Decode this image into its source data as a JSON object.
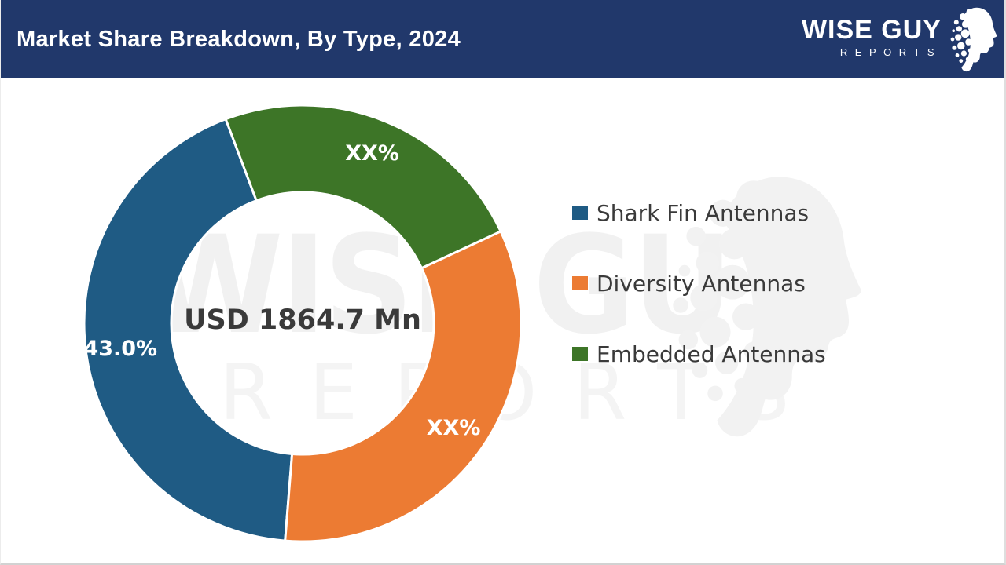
{
  "header": {
    "title": "Market Share Breakdown, By Type, 2024",
    "logo": {
      "line1": "WISE GUY",
      "line2": "REPORTS",
      "icon": "face-profile-dots-icon"
    }
  },
  "watermark": {
    "line1": "WISE GUY",
    "line2": "REPORTS",
    "icon": "face-profile-dots-icon"
  },
  "colors": {
    "header_bg": "#21386B",
    "title_text": "#FFFFFF",
    "center_text": "#3A3A3A",
    "legend_text": "#3A3A3A",
    "slice_label_text": "#FFFFFF",
    "watermark": "#F1F1F1"
  },
  "chart_data": {
    "type": "pie",
    "subtype": "donut",
    "title": "Market Share Breakdown, By Type, 2024",
    "center_label": "USD 1864.7 Mn",
    "series": [
      {
        "name": "Shark Fin Antennas",
        "label": "43.0%",
        "value": 43.0,
        "color": "#1F5B84"
      },
      {
        "name": "Diversity Antennas",
        "label": "XX%",
        "value": 33.2,
        "color": "#EC7B33"
      },
      {
        "name": "Embedded Antennas",
        "label": "XX%",
        "value": 23.8,
        "color": "#3D7527"
      }
    ],
    "start_angle_deg": 110.6,
    "counterclockwise": true,
    "inner_radius_ratio": 0.6,
    "legend_position": "right"
  }
}
